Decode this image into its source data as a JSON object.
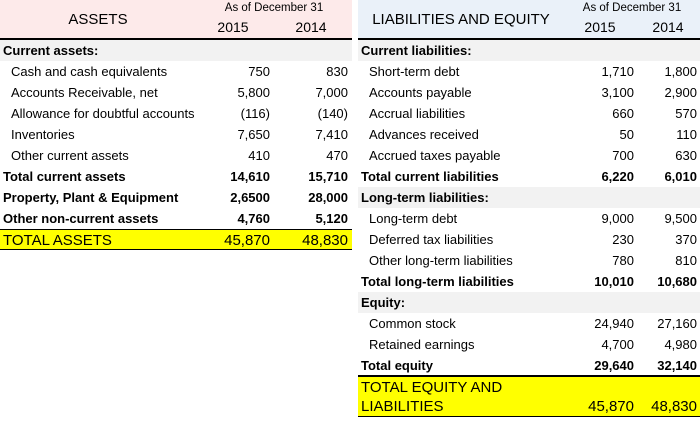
{
  "colors": {
    "assets_header_bg": "#fdeaea",
    "liabilities_header_bg": "#eaf1f9",
    "section_row_bg": "#f2f2f2",
    "grand_total_bg": "#ffff00",
    "border_color": "#000000"
  },
  "assets": {
    "title": "ASSETS",
    "as_of_label": "As of December 31",
    "year_columns": [
      "2015",
      "2014"
    ],
    "rows": [
      {
        "label": "Current assets:",
        "y2015": "",
        "y2014": "",
        "style": "section"
      },
      {
        "label": "Cash and cash equivalents",
        "y2015": "750",
        "y2014": "830",
        "style": "item"
      },
      {
        "label": "Accounts Receivable, net",
        "y2015": "5,800",
        "y2014": "7,000",
        "style": "item"
      },
      {
        "label": "Allowance for doubtful accounts",
        "y2015": "(116)",
        "y2014": "(140)",
        "style": "item"
      },
      {
        "label": "Inventories",
        "y2015": "7,650",
        "y2014": "7,410",
        "style": "item"
      },
      {
        "label": "Other current assets",
        "y2015": "410",
        "y2014": "470",
        "style": "item"
      },
      {
        "label": "Total current assets",
        "y2015": "14,610",
        "y2014": "15,710",
        "style": "total"
      },
      {
        "label": "Property, Plant & Equipment",
        "y2015": "2,6500",
        "y2014": "28,000",
        "style": "total"
      },
      {
        "label": "Other non-current assets",
        "y2015": "4,760",
        "y2014": "5,120",
        "style": "total"
      },
      {
        "label": "TOTAL ASSETS",
        "y2015": "45,870",
        "y2014": "48,830",
        "style": "grand"
      }
    ]
  },
  "liabilities_equity": {
    "title": "LIABILITIES AND EQUITY",
    "as_of_label": "As of December 31",
    "year_columns": [
      "2015",
      "2014"
    ],
    "rows": [
      {
        "label": "Current liabilities:",
        "y2015": "",
        "y2014": "",
        "style": "section"
      },
      {
        "label": "Short-term debt",
        "y2015": "1,710",
        "y2014": "1,800",
        "style": "item"
      },
      {
        "label": "Accounts payable",
        "y2015": "3,100",
        "y2014": "2,900",
        "style": "item"
      },
      {
        "label": "Accrual liabilities",
        "y2015": "660",
        "y2014": "570",
        "style": "item"
      },
      {
        "label": "Advances received",
        "y2015": "50",
        "y2014": "110",
        "style": "item"
      },
      {
        "label": "Accrued taxes payable",
        "y2015": "700",
        "y2014": "630",
        "style": "item"
      },
      {
        "label": "Total current liabilities",
        "y2015": "6,220",
        "y2014": "6,010",
        "style": "total"
      },
      {
        "label": "Long-term liabilities:",
        "y2015": "",
        "y2014": "",
        "style": "section"
      },
      {
        "label": "Long-term debt",
        "y2015": "9,000",
        "y2014": "9,500",
        "style": "item"
      },
      {
        "label": "Deferred tax liabilities",
        "y2015": "230",
        "y2014": "370",
        "style": "item"
      },
      {
        "label": "Other long-term liabilities",
        "y2015": "780",
        "y2014": "810",
        "style": "item"
      },
      {
        "label": "Total long-term liabilities",
        "y2015": "10,010",
        "y2014": "10,680",
        "style": "total"
      },
      {
        "label": "Equity:",
        "y2015": "",
        "y2014": "",
        "style": "section"
      },
      {
        "label": "Common stock",
        "y2015": "24,940",
        "y2014": "27,160",
        "style": "item"
      },
      {
        "label": "Retained earnings",
        "y2015": "4,700",
        "y2014": "4,980",
        "style": "item"
      },
      {
        "label": "Total equity",
        "y2015": "29,640",
        "y2014": "32,140",
        "style": "total rule-bottom"
      },
      {
        "label": "TOTAL EQUITY AND LIABILITIES",
        "y2015": "45,870",
        "y2014": "48,830",
        "style": "grand"
      }
    ]
  }
}
